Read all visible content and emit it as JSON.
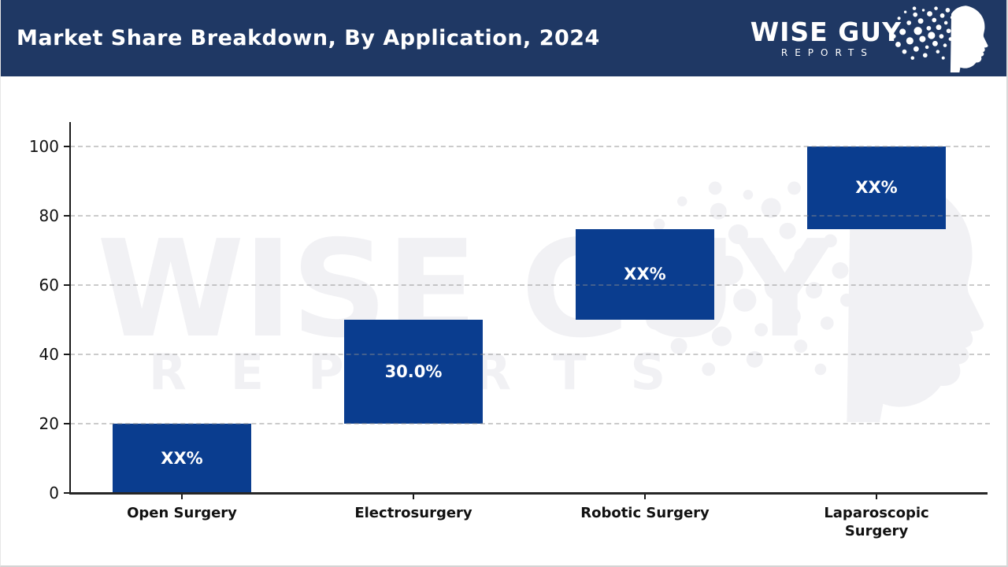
{
  "header": {
    "title": "Market Share Breakdown, By Application, 2024",
    "logo": {
      "brand": "WISE GUY",
      "sub": "REPORTS"
    }
  },
  "watermark": {
    "brand": "WISE GUY",
    "sub": "REPORTS"
  },
  "chart_data": {
    "type": "bar",
    "subtype": "floating-waterfall",
    "title": "Market Share Breakdown, By Application, 2024",
    "categories": [
      "Open Surgery",
      "Electrosurgery",
      "Robotic Surgery",
      "Laparoscopic Surgery"
    ],
    "series": [
      {
        "name": "Market Share (%)",
        "ranges": [
          [
            0,
            20
          ],
          [
            20,
            50
          ],
          [
            50,
            76
          ],
          [
            76,
            100
          ]
        ],
        "labels": [
          "XX%",
          "30.0%",
          "XX%",
          "XX%"
        ]
      }
    ],
    "y_ticks": [
      0,
      20,
      40,
      60,
      80,
      100
    ],
    "ylim": [
      0,
      107
    ],
    "grid": {
      "axis": "y",
      "style": "dashed",
      "over_bars": true
    },
    "legend": "none",
    "colors": {
      "bar": "#0a3d8f",
      "header_bg": "#1f3864",
      "grid": "#c9c9c9",
      "axis": "#1a1a1a",
      "watermark": "#f1f1f4"
    }
  }
}
